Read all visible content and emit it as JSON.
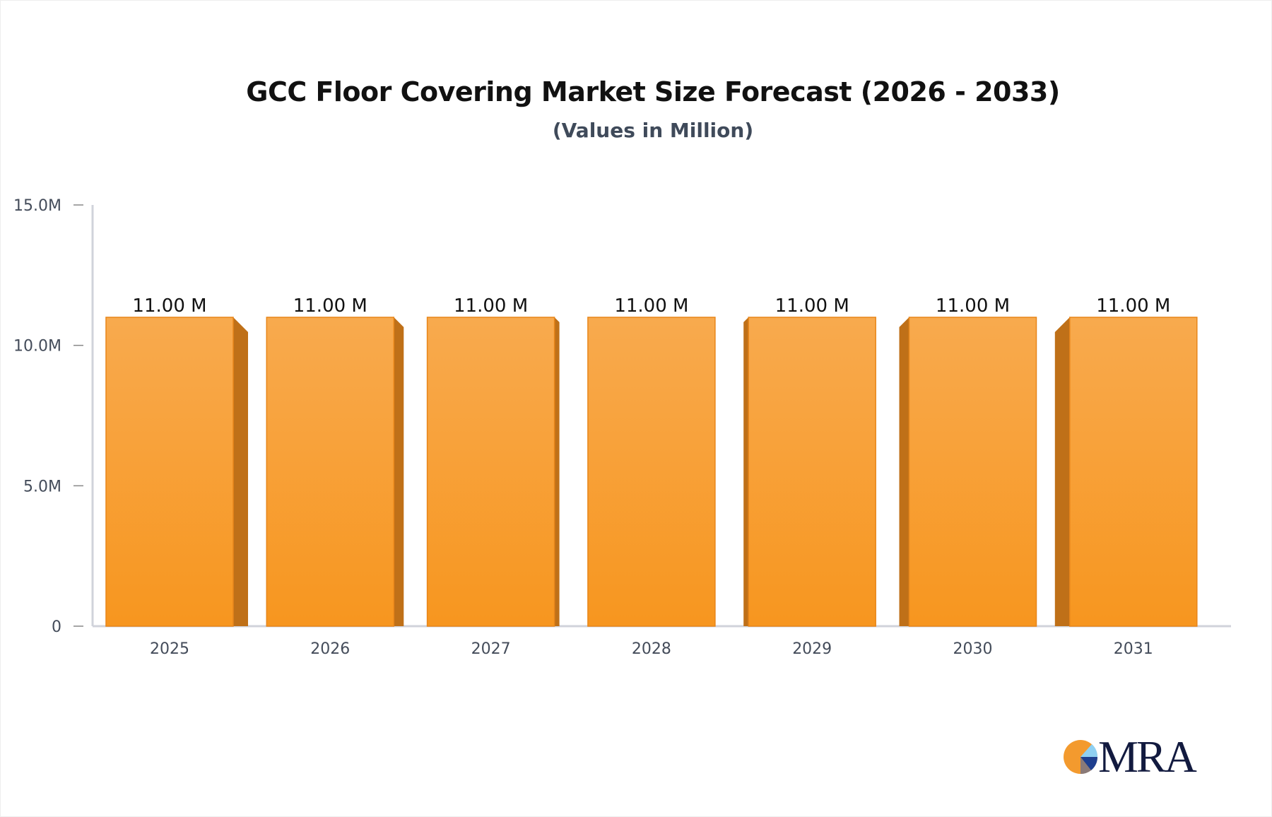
{
  "chart_data": {
    "type": "bar",
    "title": "GCC Floor Covering Market Size Forecast (2026 - 2033)",
    "subtitle": "(Values in Million)",
    "categories": [
      "2025",
      "2026",
      "2027",
      "2028",
      "2029",
      "2030",
      "2031"
    ],
    "values": [
      11.0,
      11.0,
      11.0,
      11.0,
      11.0,
      11.0,
      11.0
    ],
    "data_labels": [
      "11.00 M",
      "11.00 M",
      "11.00 M",
      "11.00 M",
      "11.00 M",
      "11.00 M",
      "11.00 M"
    ],
    "ylim": [
      0,
      15
    ],
    "yticks": [
      0,
      5,
      10,
      15
    ],
    "ytick_labels": [
      "0",
      "5.0M",
      "10.0M",
      "15.0M"
    ],
    "xlabel": "",
    "ylabel": "",
    "grid": false,
    "bar_style": "3d",
    "colors": {
      "bar_front": "#f7a040",
      "bar_side": "#bf7018",
      "axis": "#d0d3db",
      "tick_text": "#444c5a"
    }
  },
  "logo": {
    "text": "MRA"
  }
}
